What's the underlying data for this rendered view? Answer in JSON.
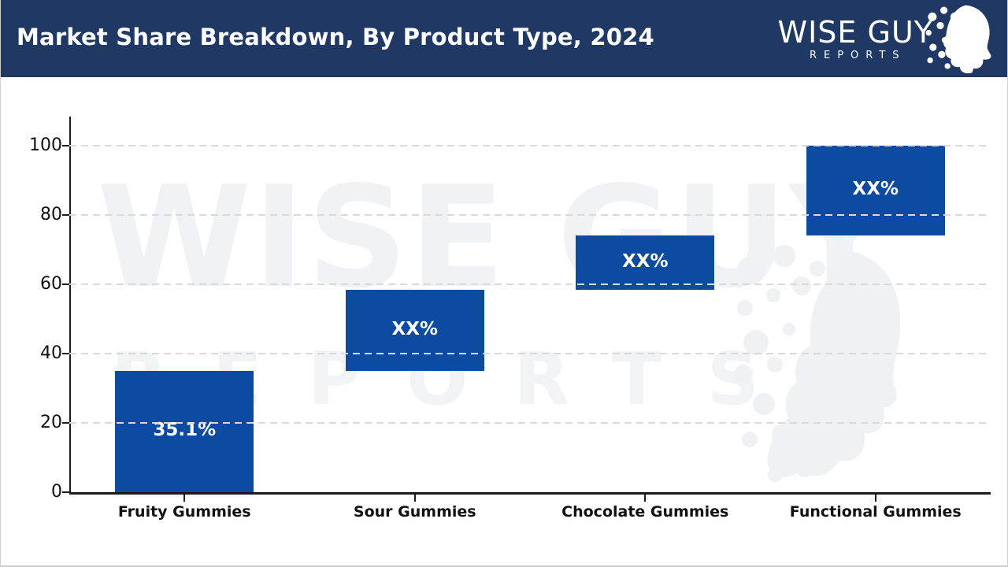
{
  "header": {
    "title": "Market Share Breakdown, By Product Type, 2024",
    "bg_color": "#1f3864",
    "logo": {
      "name": "WISE GUY",
      "sub": "REPORTS"
    }
  },
  "watermark": {
    "line1": "WISE GUY",
    "line2": "REPORTS"
  },
  "chart_data": {
    "type": "bar",
    "variant": "waterfall",
    "title": "Market Share Breakdown, By Product Type, 2024",
    "categories": [
      "Fruity Gummies",
      "Sour Gummies",
      "Chocolate Gummies",
      "Functional Gummies"
    ],
    "segments": [
      {
        "category": "Fruity Gummies",
        "start": 0,
        "end": 35.1,
        "label": "35.1%"
      },
      {
        "category": "Sour Gummies",
        "start": 35.1,
        "end": 58.3,
        "label": "XX%"
      },
      {
        "category": "Chocolate Gummies",
        "start": 58.3,
        "end": 74.0,
        "label": "XX%"
      },
      {
        "category": "Functional Gummies",
        "start": 74.0,
        "end": 100.0,
        "label": "XX%"
      }
    ],
    "yticks": [
      0,
      20,
      40,
      60,
      80,
      100
    ],
    "ylim": [
      0,
      108
    ],
    "xlabel": "",
    "ylabel": "",
    "bar_color": "#0d4ba1",
    "bar_label_color": "#ffffff",
    "grid": {
      "show": true,
      "style": "dashed",
      "color": "#d9d9d9"
    },
    "legend": "none"
  }
}
